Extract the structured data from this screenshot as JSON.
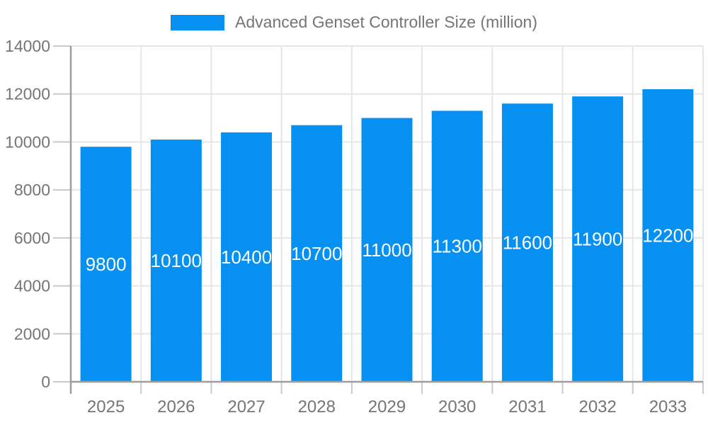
{
  "chart_data": {
    "type": "bar",
    "title": "Advanced Genset Controller Size (million)",
    "legend_label": "Advanced Genset Controller Size (million)",
    "categories": [
      "2025",
      "2026",
      "2027",
      "2028",
      "2029",
      "2030",
      "2031",
      "2032",
      "2033"
    ],
    "values": [
      9800,
      10100,
      10400,
      10700,
      11000,
      11300,
      11600,
      11900,
      12200
    ],
    "bar_value_labels": [
      "9800",
      "10100",
      "10400",
      "10700",
      "11000",
      "11300",
      "11600",
      "11900",
      "12200"
    ],
    "xlabel": "",
    "ylabel": "",
    "ylim": [
      0,
      14000
    ],
    "ytick_step": 2000,
    "ytick_labels": [
      "0",
      "2000",
      "4000",
      "6000",
      "8000",
      "10000",
      "12000",
      "14000"
    ],
    "grid": true,
    "legend_position": "top",
    "colors": {
      "bar": "#0690f2",
      "bar_label_text": "#ffffff",
      "axis_line": "#9e9e9e",
      "tick_mark": "#c9c9c9",
      "gridline": "#e6e6e6",
      "tick_label_text": "#757575",
      "background": "#ffffff"
    }
  }
}
